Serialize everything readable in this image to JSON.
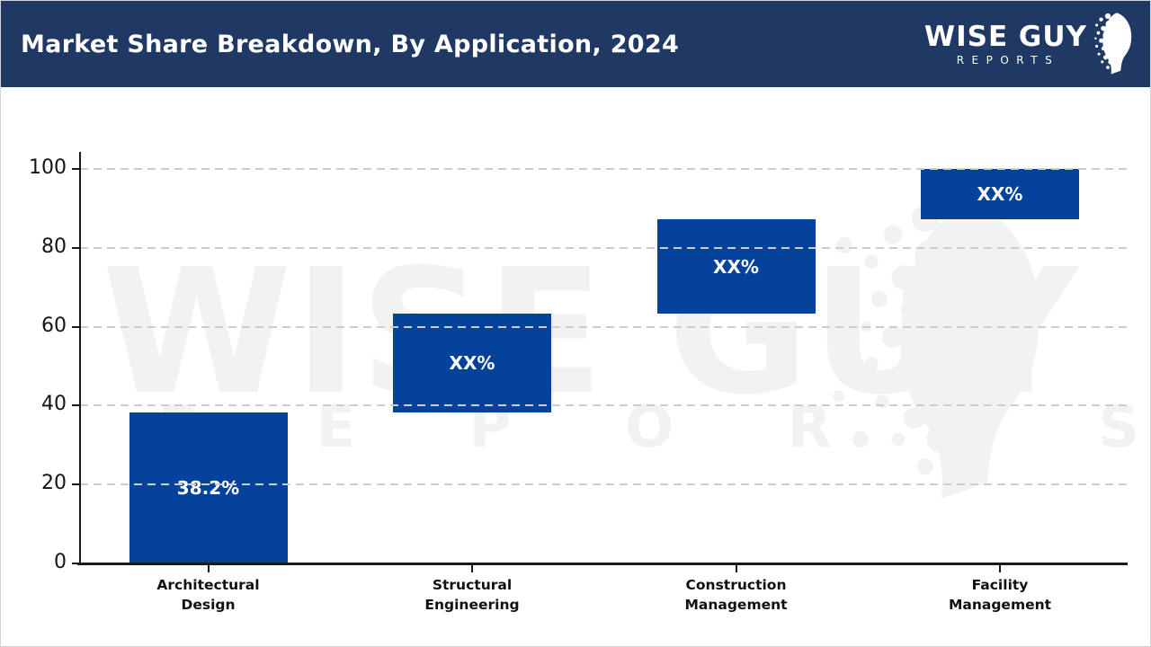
{
  "header": {
    "title": "Market Share Breakdown, By Application, 2024",
    "logo": {
      "line1": "WISE GUY",
      "line2": "REPORTS"
    }
  },
  "watermark": {
    "line1": "WISE GUY",
    "line2": "R E P O R T S"
  },
  "chart_data": {
    "type": "bar",
    "subtype": "waterfall",
    "title": "Market Share Breakdown, By Application, 2024",
    "categories": [
      {
        "line1": "Architectural",
        "line2": "Design"
      },
      {
        "line1": "Structural",
        "line2": "Engineering"
      },
      {
        "line1": "Construction",
        "line2": "Management"
      },
      {
        "line1": "Facility",
        "line2": "Management"
      }
    ],
    "segments": [
      {
        "label": "38.2%",
        "start": 0,
        "end": 38.2
      },
      {
        "label": "XX%",
        "start": 38.2,
        "end": 63.3
      },
      {
        "label": "XX%",
        "start": 63.3,
        "end": 87.2
      },
      {
        "label": "XX%",
        "start": 87.2,
        "end": 100
      }
    ],
    "yticks": [
      0,
      20,
      40,
      60,
      80,
      100
    ],
    "ylim": [
      0,
      100
    ],
    "grid": "horizontal-dashed",
    "legend": "none"
  },
  "colors": {
    "header_bg": "#1f3864",
    "bar": "#04429c",
    "grid": "#cdcdcd",
    "axis": "#1a1a1a",
    "watermark": "#f2f2f2",
    "page_bg": "#ffffff"
  }
}
